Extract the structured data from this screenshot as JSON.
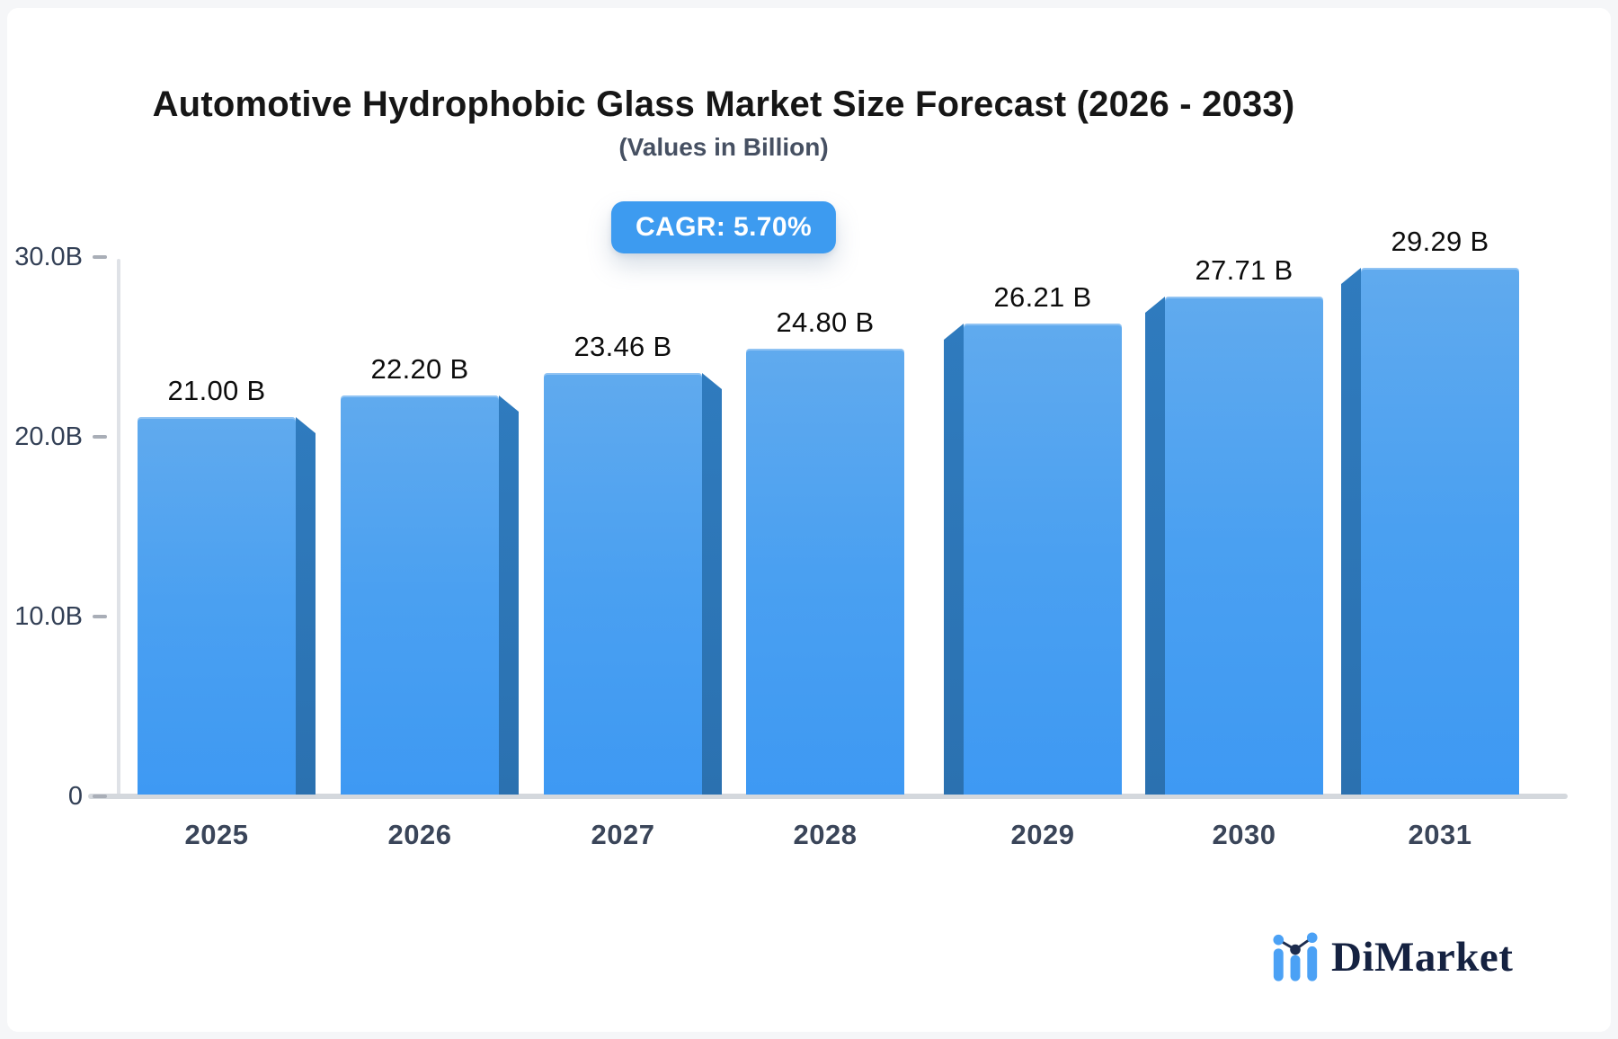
{
  "chart_data": {
    "type": "bar",
    "title": "Automotive Hydrophobic Glass Market Size Forecast (2026 - 2033)",
    "subtitle": "(Values in Billion)",
    "cagr_label": "CAGR: 5.70%",
    "categories": [
      "2025",
      "2026",
      "2027",
      "2028",
      "2029",
      "2030",
      "2031"
    ],
    "values": [
      21.0,
      22.2,
      23.46,
      24.8,
      26.21,
      27.71,
      29.29
    ],
    "value_labels": [
      "21.00 B",
      "22.20 B",
      "23.46 B",
      "24.80 B",
      "26.21 B",
      "27.71 B",
      "29.29 B"
    ],
    "xlabel": "",
    "ylabel": "",
    "ylim": [
      0,
      30
    ],
    "y_ticks": [
      "0",
      "10.0B",
      "20.0B",
      "30.0B"
    ],
    "y_tick_values": [
      0,
      10,
      20,
      30
    ],
    "grid": false,
    "legend": false
  },
  "footer": {
    "brand": "DiMarket"
  },
  "colors": {
    "badge_bg": "#3D9BF0",
    "badge_text": "#FFFFFF",
    "bar_face_top": "#60AAEE",
    "bar_face_mid": "#4AA0F1",
    "bar_face_bottom": "#3E99F3",
    "bar_side_top": "#2F7BBE",
    "bar_side_bottom": "#2B71B0",
    "axis_line": "#D4D8DD",
    "tick_text": "#334056",
    "value_text": "#0D0D0D",
    "title_text": "#161616",
    "subtitle_text": "#465062",
    "brand_text": "#152241",
    "brand_blue": "#4BA1F5"
  }
}
